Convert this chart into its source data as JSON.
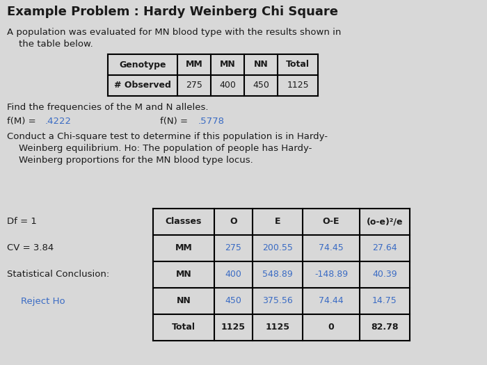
{
  "title": "Example Problem : Hardy Weinberg Chi Square",
  "bg_color": "#d8d8d8",
  "intro_line1": "A population was evaluated for MN blood type with the results shown in",
  "intro_line2": "    the table below.",
  "obs_table": {
    "headers": [
      "Genotype",
      "MM",
      "MN",
      "NN",
      "Total"
    ],
    "row_label": "# Observed",
    "values": [
      "275",
      "400",
      "450",
      "1125"
    ]
  },
  "freq_line": "Find the frequencies of the M and N alleles.",
  "fM_label": "f(M) = ",
  "fM_value": ".4222",
  "fN_label": "f(N) = ",
  "fN_value": ".5778",
  "freq_color": "#3a6bc4",
  "conduct_line1": "Conduct a Chi-square test to determine if this population is in Hardy-",
  "conduct_line2": "    Weinberg equilibrium. Ho: The population of people has Hardy-",
  "conduct_line3": "    Weinberg proportions for the MN blood type locus.",
  "df_label": "Df = 1",
  "cv_label": "CV = 3.84",
  "stat_label": "Statistical Conclusion:",
  "reject_label": "Reject Ho",
  "reject_color": "#3a6bc4",
  "chi_table": {
    "headers": [
      "Classes",
      "O",
      "E",
      "O-E",
      "(o-e)²/e"
    ],
    "rows": [
      [
        "MM",
        "275",
        "200.55",
        "74.45",
        "27.64"
      ],
      [
        "MN",
        "400",
        "548.89",
        "-148.89",
        "40.39"
      ],
      [
        "NN",
        "450",
        "375.56",
        "74.44",
        "14.75"
      ],
      [
        "Total",
        "1125",
        "1125",
        "0",
        "82.78"
      ]
    ],
    "data_color": "#3a6bc4"
  }
}
